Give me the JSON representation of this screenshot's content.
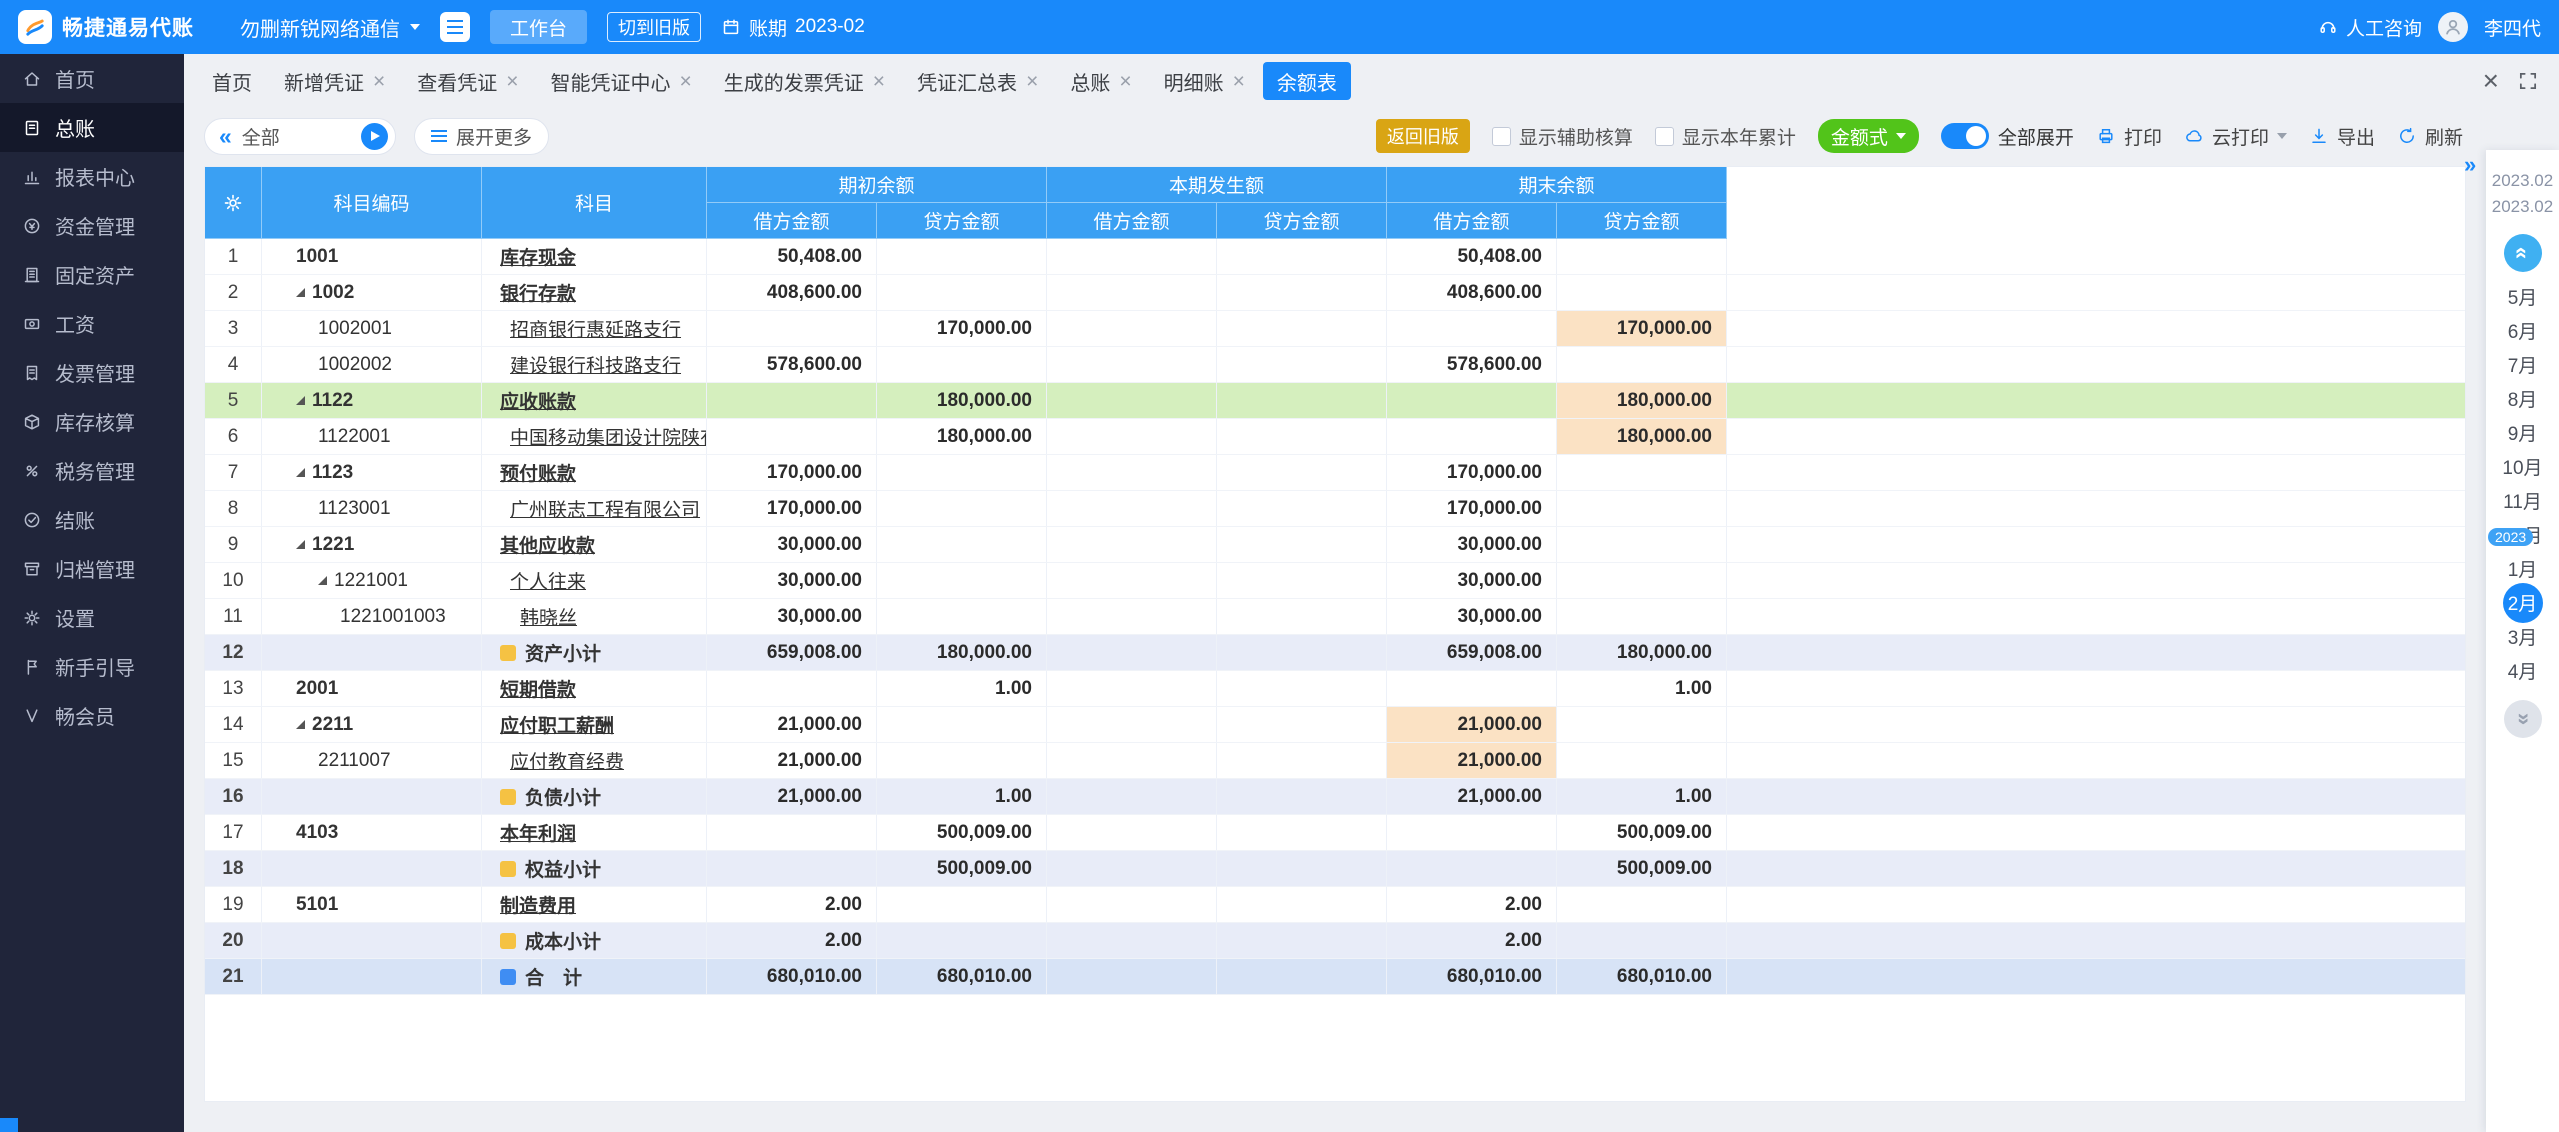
{
  "header": {
    "brand": "畅捷通易代账",
    "company": "勿删新锐网络通信",
    "workbench": "工作台",
    "switch_old": "切到旧版",
    "period_label": "账期",
    "period_value": "2023-02",
    "support": "人工咨询",
    "user": "李四代"
  },
  "tabs": {
    "items": [
      {
        "label": "首页",
        "closable": false,
        "active": false
      },
      {
        "label": "新增凭证",
        "closable": true,
        "active": false
      },
      {
        "label": "查看凭证",
        "closable": true,
        "active": false
      },
      {
        "label": "智能凭证中心",
        "closable": true,
        "active": false
      },
      {
        "label": "生成的发票凭证",
        "closable": true,
        "active": false
      },
      {
        "label": "凭证汇总表",
        "closable": true,
        "active": false
      },
      {
        "label": "总账",
        "closable": true,
        "active": false
      },
      {
        "label": "明细账",
        "closable": true,
        "active": false
      },
      {
        "label": "余额表",
        "closable": false,
        "active": true
      }
    ]
  },
  "sidebar": {
    "items": [
      {
        "label": "首页",
        "icon": "home",
        "active": false
      },
      {
        "label": "总账",
        "icon": "ledger",
        "active": true
      },
      {
        "label": "报表中心",
        "icon": "report",
        "active": false
      },
      {
        "label": "资金管理",
        "icon": "fund",
        "active": false
      },
      {
        "label": "固定资产",
        "icon": "asset",
        "active": false
      },
      {
        "label": "工资",
        "icon": "salary",
        "active": false
      },
      {
        "label": "发票管理",
        "icon": "invoice",
        "active": false
      },
      {
        "label": "库存核算",
        "icon": "inventory",
        "active": false
      },
      {
        "label": "税务管理",
        "icon": "tax",
        "active": false
      },
      {
        "label": "结账",
        "icon": "closing",
        "active": false
      },
      {
        "label": "归档管理",
        "icon": "archive",
        "active": false
      },
      {
        "label": "设置",
        "icon": "settings",
        "active": false
      },
      {
        "label": "新手引导",
        "icon": "guide",
        "active": false
      },
      {
        "label": "畅会员",
        "icon": "member",
        "active": false
      }
    ]
  },
  "toolbar": {
    "filter_all": "全部",
    "expand_more": "展开更多",
    "back_old": "返回旧版",
    "show_aux": "显示辅助核算",
    "show_ytd": "显示本年累计",
    "amount_style": "金额式",
    "expand_all": "全部展开",
    "print": "打印",
    "cloud_print": "云打印",
    "export": "导出",
    "refresh": "刷新"
  },
  "table": {
    "code_header": "科目编码",
    "subject_header": "科目",
    "groups": [
      "期初余额",
      "本期发生额",
      "期末余额"
    ],
    "debit": "借方金额",
    "credit": "贷方金额",
    "rows": [
      {
        "n": "1",
        "code": "1001",
        "lvl": 0,
        "caret": false,
        "bold": true,
        "name": "库存现金",
        "link": true,
        "v": [
          "50,408.00",
          "",
          "",
          "",
          "50,408.00",
          ""
        ]
      },
      {
        "n": "2",
        "code": "1002",
        "lvl": 0,
        "caret": true,
        "bold": true,
        "name": "银行存款",
        "link": true,
        "v": [
          "408,600.00",
          "",
          "",
          "",
          "408,600.00",
          ""
        ]
      },
      {
        "n": "3",
        "code": "1002001",
        "lvl": 1,
        "name": "招商银行惠延路支行",
        "link": true,
        "v": [
          "",
          "170,000.00",
          "",
          "",
          "",
          "170,000.00"
        ],
        "orange": 5
      },
      {
        "n": "4",
        "code": "1002002",
        "lvl": 1,
        "name": "建设银行科技路支行",
        "link": true,
        "v": [
          "578,600.00",
          "",
          "",
          "",
          "578,600.00",
          ""
        ]
      },
      {
        "n": "5",
        "code": "1122",
        "lvl": 0,
        "caret": true,
        "bold": true,
        "selected": true,
        "name": "应收账款",
        "link": true,
        "v": [
          "",
          "180,000.00",
          "",
          "",
          "",
          "180,000.00"
        ],
        "orange": 5
      },
      {
        "n": "6",
        "code": "1122001",
        "lvl": 1,
        "name": "中国移动集团设计院陕有限公司",
        "link": true,
        "v": [
          "",
          "180,000.00",
          "",
          "",
          "",
          "180,000.00"
        ],
        "orange": 5
      },
      {
        "n": "7",
        "code": "1123",
        "lvl": 0,
        "caret": true,
        "bold": true,
        "name": "预付账款",
        "link": true,
        "v": [
          "170,000.00",
          "",
          "",
          "",
          "170,000.00",
          ""
        ]
      },
      {
        "n": "8",
        "code": "1123001",
        "lvl": 1,
        "name": "广州联志工程有限公司",
        "link": true,
        "v": [
          "170,000.00",
          "",
          "",
          "",
          "170,000.00",
          ""
        ]
      },
      {
        "n": "9",
        "code": "1221",
        "lvl": 0,
        "caret": true,
        "bold": true,
        "name": "其他应收款",
        "link": true,
        "v": [
          "30,000.00",
          "",
          "",
          "",
          "30,000.00",
          ""
        ]
      },
      {
        "n": "10",
        "code": "1221001",
        "lvl": 1,
        "caret": true,
        "name": "个人往来",
        "link": true,
        "v": [
          "30,000.00",
          "",
          "",
          "",
          "30,000.00",
          ""
        ]
      },
      {
        "n": "11",
        "code": "1221001003",
        "lvl": 2,
        "name": "韩晓丝",
        "link": true,
        "v": [
          "30,000.00",
          "",
          "",
          "",
          "30,000.00",
          ""
        ]
      },
      {
        "n": "12",
        "type": "subtotal",
        "icon": "yellow",
        "name": "资产小计",
        "v": [
          "659,008.00",
          "180,000.00",
          "",
          "",
          "659,008.00",
          "180,000.00"
        ]
      },
      {
        "n": "13",
        "code": "2001",
        "lvl": 0,
        "bold": true,
        "name": "短期借款",
        "link": true,
        "v": [
          "",
          "1.00",
          "",
          "",
          "",
          "1.00"
        ]
      },
      {
        "n": "14",
        "code": "2211",
        "lvl": 0,
        "caret": true,
        "bold": true,
        "name": "应付职工薪酬",
        "link": true,
        "v": [
          "21,000.00",
          "",
          "",
          "",
          "21,000.00",
          ""
        ],
        "orange": 4
      },
      {
        "n": "15",
        "code": "2211007",
        "lvl": 1,
        "name": "应付教育经费",
        "link": true,
        "v": [
          "21,000.00",
          "",
          "",
          "",
          "21,000.00",
          ""
        ],
        "orange": 4
      },
      {
        "n": "16",
        "type": "subtotal",
        "icon": "yellow",
        "name": "负债小计",
        "v": [
          "21,000.00",
          "1.00",
          "",
          "",
          "21,000.00",
          "1.00"
        ]
      },
      {
        "n": "17",
        "code": "4103",
        "lvl": 0,
        "bold": true,
        "name": "本年利润",
        "link": true,
        "v": [
          "",
          "500,009.00",
          "",
          "",
          "",
          "500,009.00"
        ]
      },
      {
        "n": "18",
        "type": "subtotal",
        "icon": "yellow",
        "name": "权益小计",
        "v": [
          "",
          "500,009.00",
          "",
          "",
          "",
          "500,009.00"
        ]
      },
      {
        "n": "19",
        "code": "5101",
        "lvl": 0,
        "bold": true,
        "name": "制造费用",
        "link": true,
        "v": [
          "2.00",
          "",
          "",
          "",
          "2.00",
          ""
        ]
      },
      {
        "n": "20",
        "type": "subtotal",
        "icon": "yellow",
        "name": "成本小计",
        "v": [
          "2.00",
          "",
          "",
          "",
          "2.00",
          ""
        ]
      },
      {
        "n": "21",
        "type": "total",
        "icon": "blue",
        "name": "合　计",
        "v": [
          "680,010.00",
          "680,010.00",
          "",
          "",
          "680,010.00",
          "680,010.00"
        ]
      }
    ]
  },
  "month_panel": {
    "period_top": "2023.02",
    "period_bottom": "2023.02",
    "year_badge": "2023",
    "months": [
      "5月",
      "6月",
      "7月",
      "8月",
      "9月",
      "10月",
      "11月",
      "12月",
      "1月",
      "2月",
      "3月",
      "4月"
    ],
    "active_index": 9
  },
  "colors": {
    "primary_blue": "#1989fa",
    "table_header_blue": "#3aa0f3",
    "selected_row_green": "#d5efbe",
    "abnormal_cell_orange": "#fbe2c4",
    "subtotal_row": "#e8ecf8",
    "total_row": "#d7e3f6",
    "amount_style_green": "#52c41a",
    "back_old_yellow": "#d9a514",
    "sidebar_dark": "#20253a"
  }
}
